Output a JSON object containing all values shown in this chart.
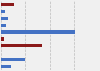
{
  "bars": [
    {
      "value": 12,
      "color": "#8B1A1A"
    },
    {
      "value": 4,
      "color": "#4472C4"
    },
    {
      "value": 7,
      "color": "#4472C4"
    },
    {
      "value": 5,
      "color": "#4472C4"
    },
    {
      "value": 68,
      "color": "#4472C4"
    },
    {
      "value": 3,
      "color": "#8B1A1A"
    },
    {
      "value": 38,
      "color": "#8B1A1A"
    },
    {
      "value": 0,
      "color": "#ffffff"
    },
    {
      "value": 22,
      "color": "#4472C4"
    },
    {
      "value": 9,
      "color": "#4472C4"
    }
  ],
  "background_color": "#f0f0f0",
  "grid_color": "#bbbbbb",
  "xlim": [
    0,
    90
  ],
  "grid_x": [
    0,
    22,
    45,
    67,
    90
  ],
  "bar_height": 0.5
}
